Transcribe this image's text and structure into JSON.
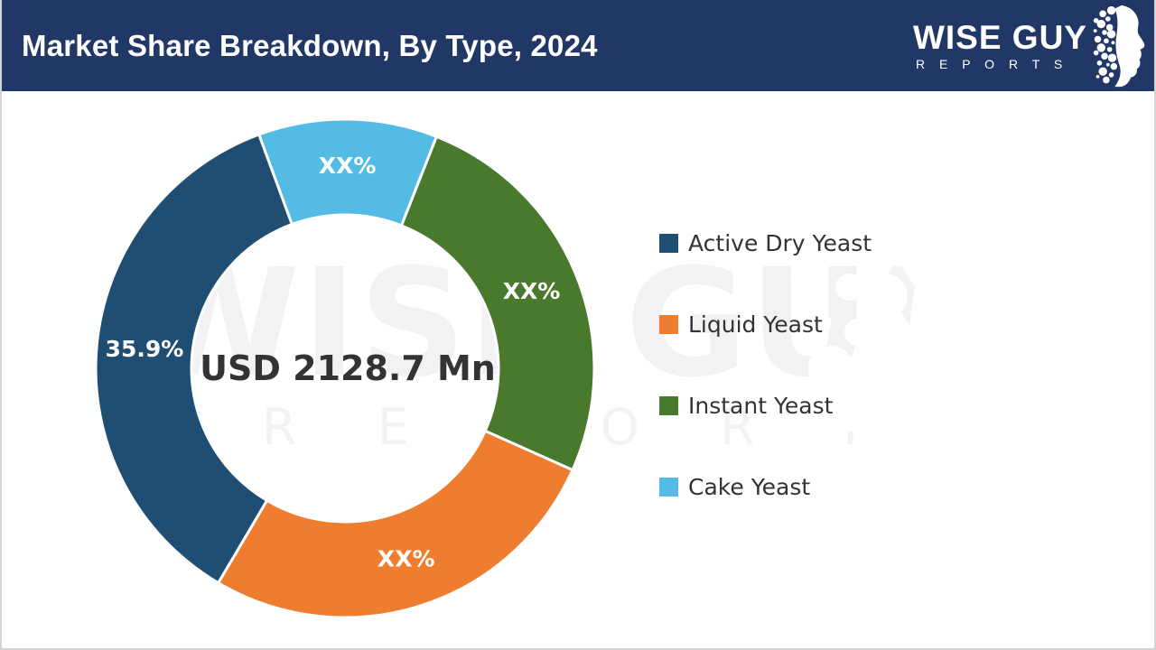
{
  "header": {
    "title": "Market Share Breakdown, By Type, 2024",
    "bg_color": "#213866",
    "logo": {
      "name": "WISE GUY",
      "tagline": "R E P O R T S"
    }
  },
  "chart_data": {
    "type": "pie",
    "subtype": "donut",
    "title": "Market Share Breakdown, By Type, 2024",
    "center_label": "USD 2128.7 Mn",
    "start_angle_deg": -20.2,
    "legend_position": "right",
    "segments": [
      {
        "label": "Cake Yeast",
        "pct": 11.6,
        "display": "XX%",
        "color": "#54BBE4"
      },
      {
        "label": "Instant Yeast",
        "pct": 25.7,
        "display": "XX%",
        "color": "#49792C"
      },
      {
        "label": "Liquid Yeast",
        "pct": 26.8,
        "display": "XX%",
        "color": "#EE7D30"
      },
      {
        "label": "Active Dry Yeast",
        "pct": 35.9,
        "display": "35.9%",
        "color": "#204E73"
      }
    ],
    "legend": [
      {
        "label": "Active Dry Yeast",
        "color": "#204E73"
      },
      {
        "label": "Liquid Yeast",
        "color": "#EE7D30"
      },
      {
        "label": "Instant Yeast",
        "color": "#49792C"
      },
      {
        "label": "Cake Yeast",
        "color": "#54BBE4"
      }
    ]
  },
  "watermark": {
    "line1": "WISE GUY",
    "line2": "R E P O R T S"
  }
}
